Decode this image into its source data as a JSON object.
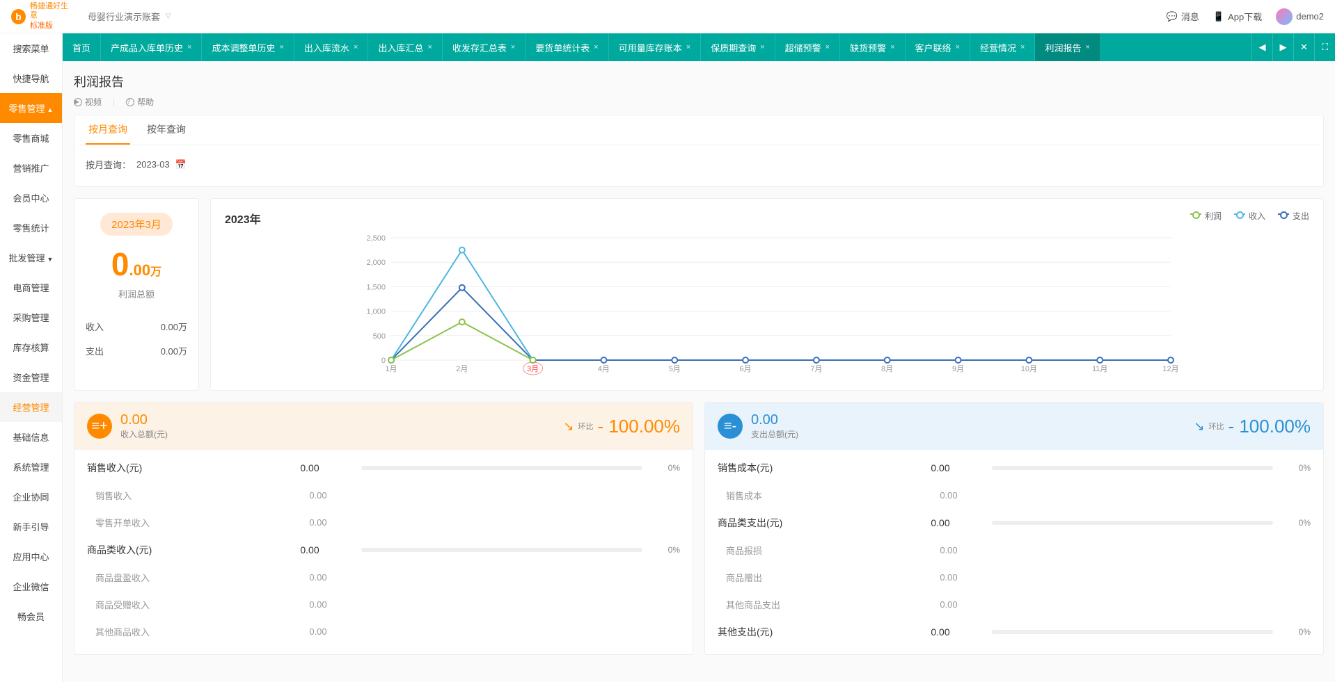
{
  "brand": {
    "name": "畅捷通好生意",
    "edition": "标准版"
  },
  "accountSelector": "母婴行业演示账套",
  "topActions": {
    "message": "消息",
    "appDownload": "App下载",
    "user": "demo2"
  },
  "sidebar": {
    "items": [
      {
        "label": "搜索菜单"
      },
      {
        "label": "快捷导航"
      },
      {
        "label": "零售管理",
        "active": true,
        "caret": true
      },
      {
        "label": "零售商城",
        "indent": true
      },
      {
        "label": "营销推广",
        "indent": true
      },
      {
        "label": "会员中心",
        "indent": true
      },
      {
        "label": "零售统计",
        "indent": true
      },
      {
        "label": "批发管理",
        "caret": true
      },
      {
        "label": "电商管理"
      },
      {
        "label": "采购管理"
      },
      {
        "label": "库存核算"
      },
      {
        "label": "资金管理"
      },
      {
        "label": "经营管理",
        "activeSub": true
      },
      {
        "label": "基础信息"
      },
      {
        "label": "系统管理"
      },
      {
        "label": "企业协同"
      },
      {
        "label": "新手引导"
      },
      {
        "label": "应用中心"
      },
      {
        "label": "企业微信"
      },
      {
        "label": "畅会员"
      }
    ]
  },
  "tabs": [
    {
      "label": "首页",
      "closable": false
    },
    {
      "label": "产成品入库单历史",
      "closable": true
    },
    {
      "label": "成本调整单历史",
      "closable": true
    },
    {
      "label": "出入库流水",
      "closable": true
    },
    {
      "label": "出入库汇总",
      "closable": true
    },
    {
      "label": "收发存汇总表",
      "closable": true
    },
    {
      "label": "要货单统计表",
      "closable": true
    },
    {
      "label": "可用量库存账本",
      "closable": true
    },
    {
      "label": "保质期查询",
      "closable": true
    },
    {
      "label": "超储预警",
      "closable": true
    },
    {
      "label": "缺货预警",
      "closable": true
    },
    {
      "label": "客户联络",
      "closable": true
    },
    {
      "label": "经营情况",
      "closable": true
    },
    {
      "label": "利润报告",
      "closable": true,
      "active": true
    }
  ],
  "page": {
    "title": "利润报告",
    "help": {
      "video": "视频",
      "help": "帮助"
    },
    "queryModes": [
      {
        "label": "按月查询",
        "active": true
      },
      {
        "label": "按年查询"
      }
    ],
    "filterLabel": "按月查询：",
    "filterValue": "2023-03"
  },
  "summary": {
    "period": "2023年3月",
    "bigInt": "0",
    "bigDec": ".00",
    "bigUnit": "万",
    "bigLabel": "利润总额",
    "incomeLabel": "收入",
    "incomeValue": "0.00万",
    "expenseLabel": "支出",
    "expenseValue": "0.00万"
  },
  "chart": {
    "title": "2023年",
    "legend": {
      "profit": "利润",
      "income": "收入",
      "expense": "支出"
    },
    "colors": {
      "profit": "#8bc34a",
      "income": "#4db6e2",
      "expense": "#3a6fb7"
    },
    "yTicks": [
      "0",
      "500",
      "1,000",
      "1,500",
      "2,000",
      "2,500"
    ],
    "yMax": 2500,
    "xLabels": [
      "1月",
      "2月",
      "3月",
      "4月",
      "5月",
      "6月",
      "7月",
      "8月",
      "9月",
      "10月",
      "11月",
      "12月"
    ],
    "highlightIndex": 2,
    "series": {
      "profit": [
        0,
        780,
        0,
        null,
        null,
        null,
        null,
        null,
        null,
        null,
        null,
        null
      ],
      "income": [
        0,
        2250,
        0,
        null,
        null,
        null,
        null,
        null,
        null,
        null,
        null,
        null
      ],
      "expense": [
        0,
        1480,
        0,
        0,
        0,
        0,
        0,
        0,
        0,
        0,
        0,
        0
      ]
    }
  },
  "panels": {
    "income": {
      "headerValue": "0.00",
      "headerLabel": "收入总额(元)",
      "trendLabel": "环比",
      "trendPct": "- 100.00%",
      "rows": [
        {
          "name": "销售收入(元)",
          "val": "0.00",
          "pct": "0%"
        },
        {
          "name": "销售收入",
          "val": "0.00",
          "sub": true
        },
        {
          "name": "零售开单收入",
          "val": "0.00",
          "sub": true
        },
        {
          "name": "商品类收入(元)",
          "val": "0.00",
          "pct": "0%"
        },
        {
          "name": "商品盘盈收入",
          "val": "0.00",
          "sub": true
        },
        {
          "name": "商品受赠收入",
          "val": "0.00",
          "sub": true
        },
        {
          "name": "其他商品收入",
          "val": "0.00",
          "sub": true
        }
      ]
    },
    "expense": {
      "headerValue": "0.00",
      "headerLabel": "支出总额(元)",
      "trendLabel": "环比",
      "trendPct": "- 100.00%",
      "rows": [
        {
          "name": "销售成本(元)",
          "val": "0.00",
          "pct": "0%"
        },
        {
          "name": "销售成本",
          "val": "0.00",
          "sub": true
        },
        {
          "name": "商品类支出(元)",
          "val": "0.00",
          "pct": "0%"
        },
        {
          "name": "商品报损",
          "val": "0.00",
          "sub": true
        },
        {
          "name": "商品赠出",
          "val": "0.00",
          "sub": true
        },
        {
          "name": "其他商品支出",
          "val": "0.00",
          "sub": true
        },
        {
          "name": "其他支出(元)",
          "val": "0.00",
          "pct": "0%"
        }
      ]
    }
  }
}
